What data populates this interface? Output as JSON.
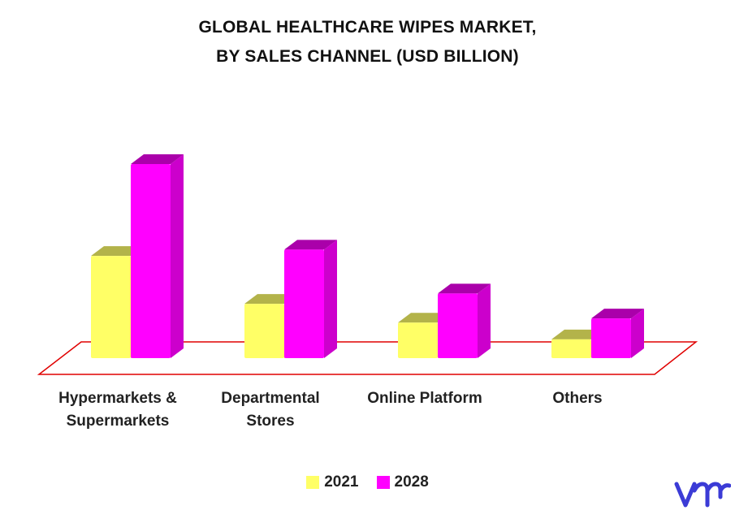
{
  "title_line1": "GLOBAL HEALTHCARE WIPES MARKET,",
  "title_line2": "BY SALES CHANNEL (USD BILLION)",
  "colors": {
    "series_2021": "#ffff66",
    "series_2021_top": "#b3b34a",
    "series_2021_side": "#cccc44",
    "series_2028": "#ff00ff",
    "series_2028_top": "#aa00aa",
    "series_2028_side": "#cc00cc",
    "floor_outline": "#e00000",
    "logo": "#3b3bd6"
  },
  "chart_data": {
    "type": "bar",
    "categories": [
      [
        "Hypermarkets &",
        "Supermarkets"
      ],
      [
        "Departmental",
        "Stores"
      ],
      [
        "Online Platform"
      ],
      [
        "Others"
      ]
    ],
    "series": [
      {
        "name": "2021",
        "values": [
          4.9,
          2.6,
          1.7,
          0.9
        ]
      },
      {
        "name": "2028",
        "values": [
          9.3,
          5.2,
          3.1,
          1.9
        ]
      }
    ],
    "ylim": [
      0,
      10
    ],
    "grid": false,
    "legend_position": "bottom"
  },
  "logo_text": "vmr"
}
